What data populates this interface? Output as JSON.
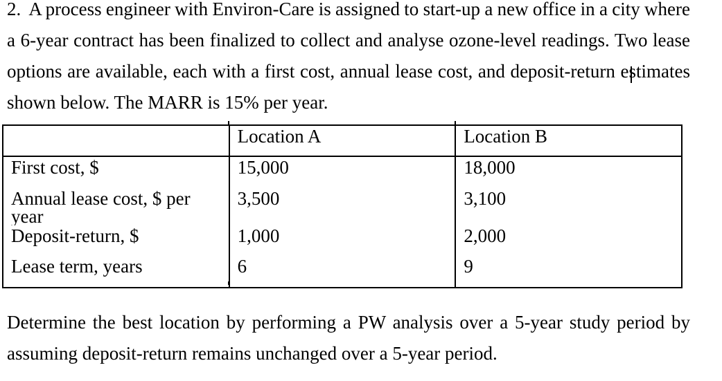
{
  "document": {
    "intro": {
      "lines": [
        "2.  A process engineer with Environ-Care is assigned to start-up a new office in a city where",
        "a 6-year contract has been finalized to collect and analyse ozone-level readings. Two lease",
        "options are available, each with a first cost, annual lease cost, and deposit-return estimates",
        "shown below. The MARR is 15% per year."
      ]
    },
    "table": {
      "header": {
        "label": "",
        "a": "Location A",
        "b": "Location B"
      },
      "rows": [
        {
          "label": "First cost, $",
          "a": "15,000",
          "b": "18,000"
        },
        {
          "label": "Annual lease cost, $ per year",
          "a": "3,500",
          "b": "3,100"
        },
        {
          "label": "Deposit-return, $",
          "a": "1,000",
          "b": "2,000"
        },
        {
          "label": "Lease term, years",
          "a": "6",
          "b": "9"
        }
      ]
    },
    "question": {
      "lines": [
        "Determine the best location by performing a PW analysis over a 5-year study period by",
        "assuming deposit-return remains unchanged over a 5-year period."
      ]
    },
    "colors": {
      "text": "#000000",
      "background": "#ffffff",
      "table_border": "#000000"
    }
  }
}
